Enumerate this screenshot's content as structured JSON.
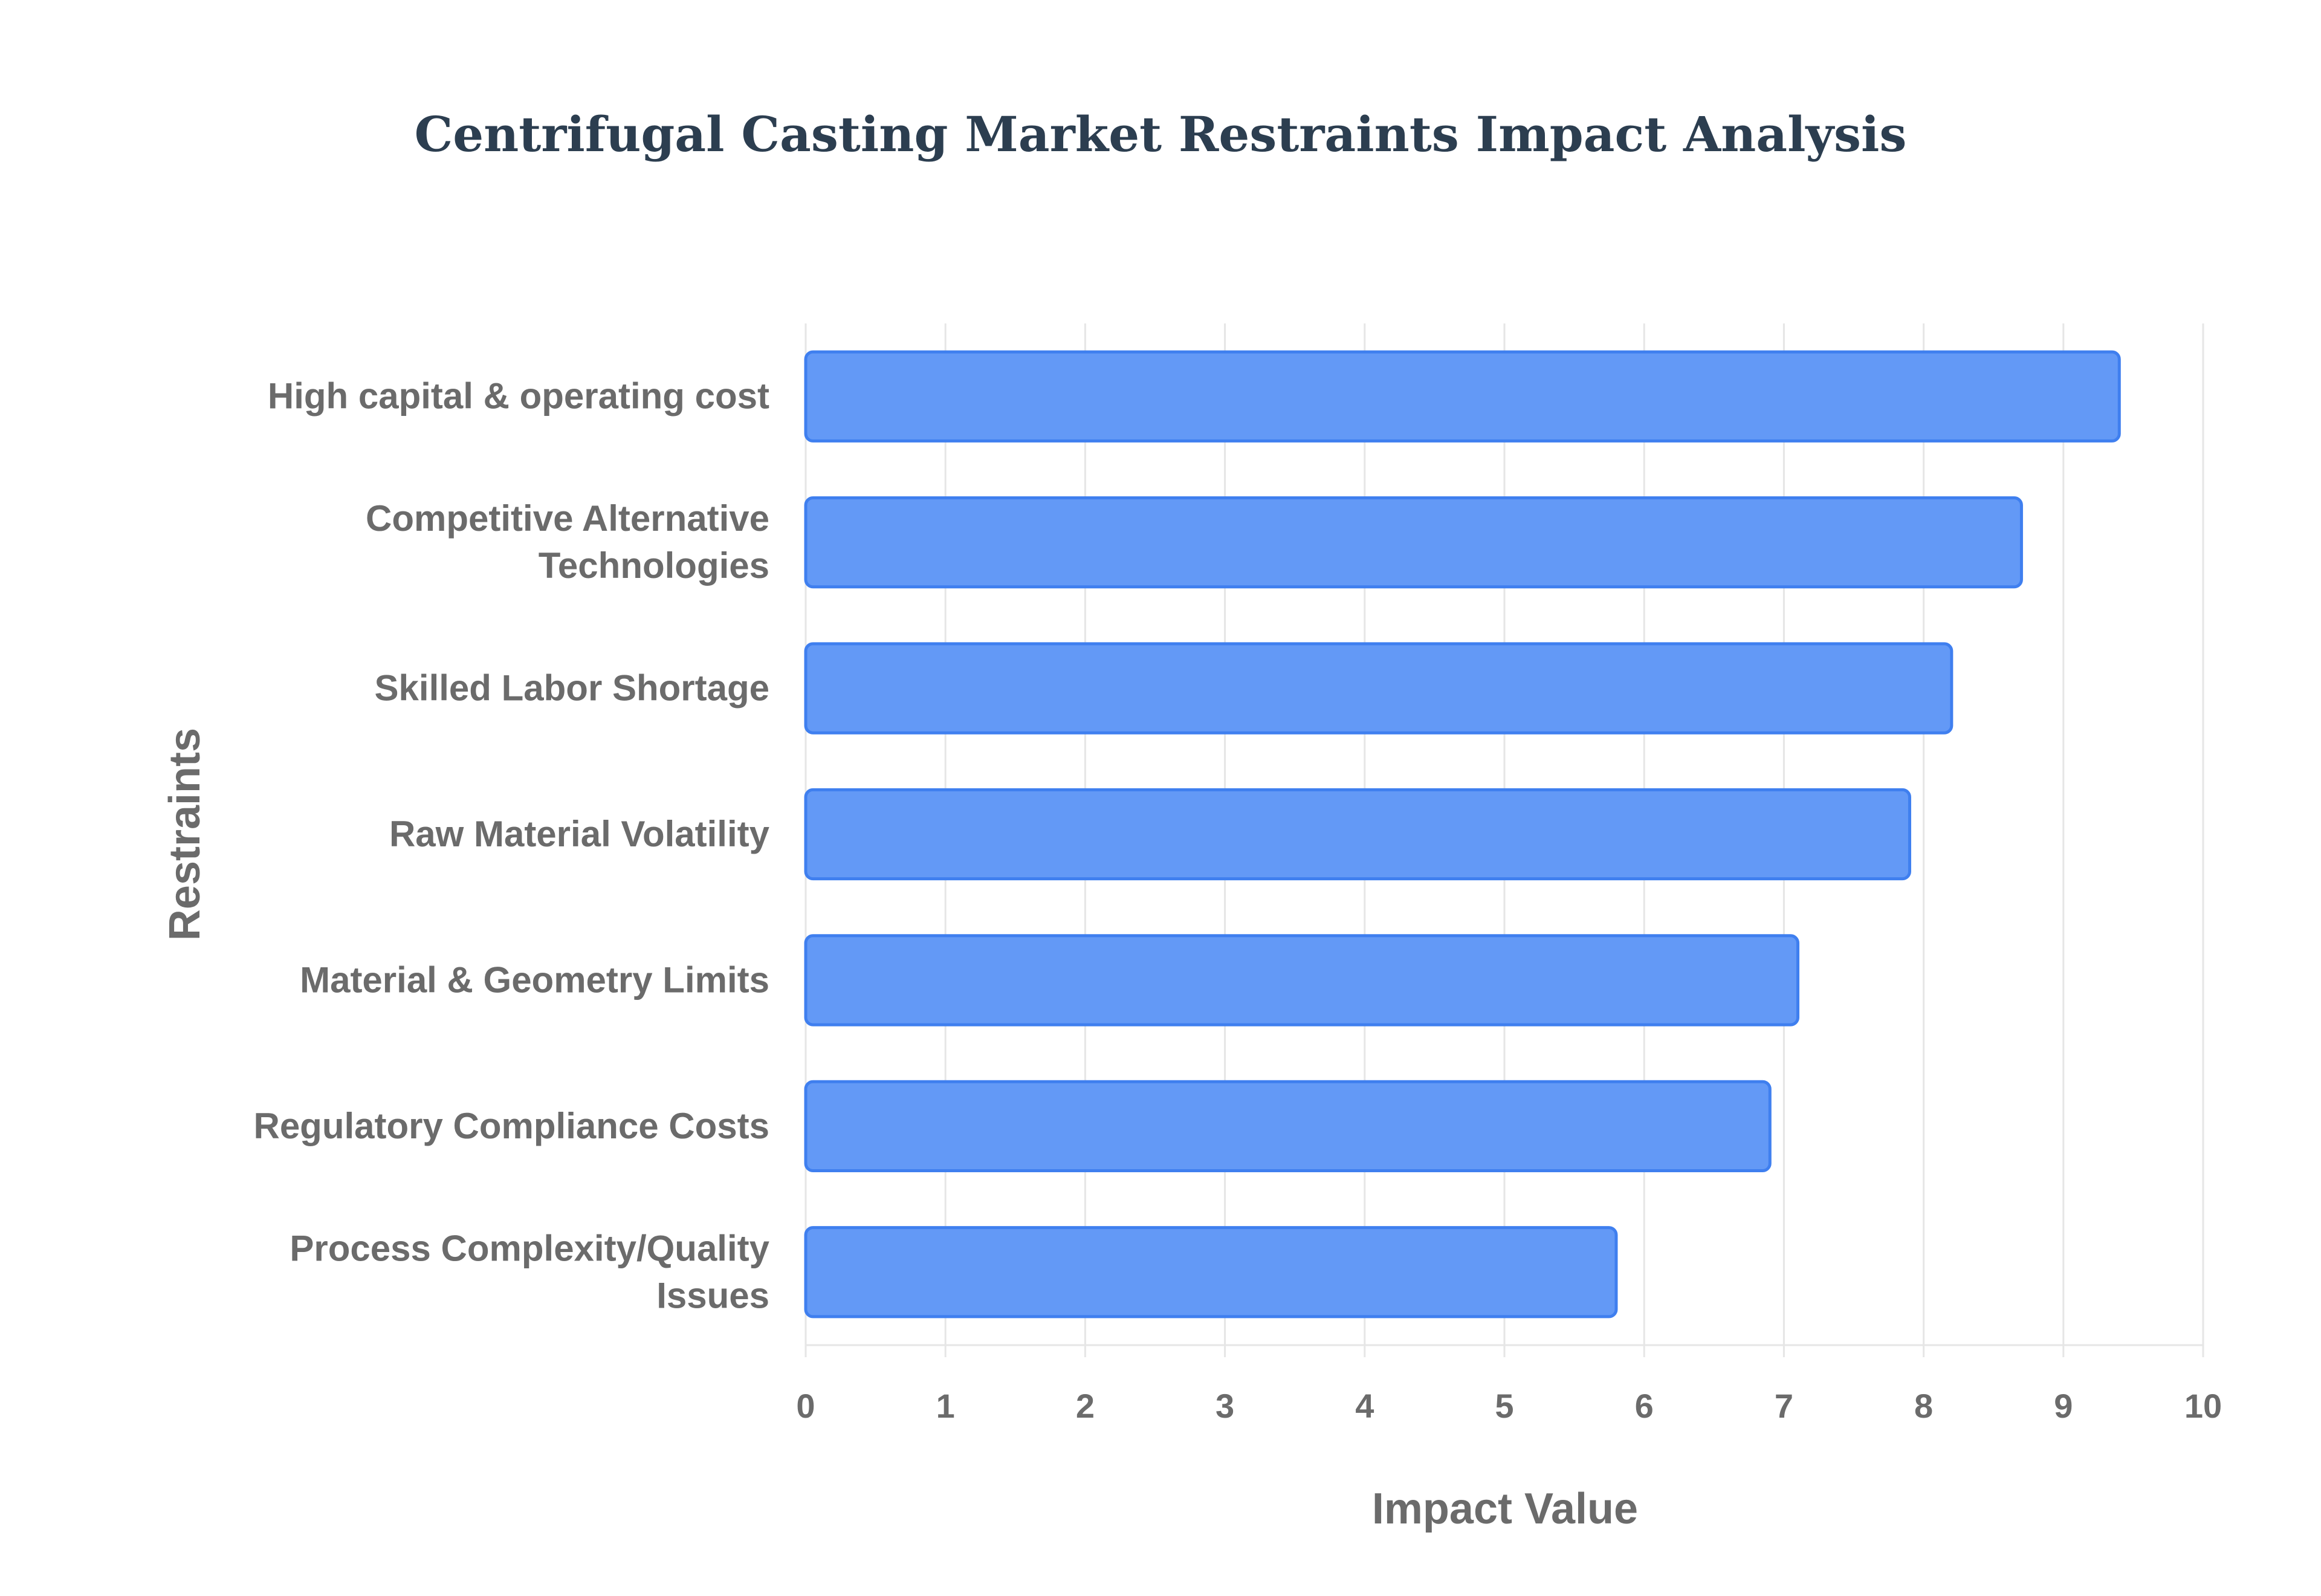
{
  "chart_data": {
    "type": "bar",
    "orientation": "horizontal",
    "title": "Centrifugal Casting Market Restraints Impact Analysis",
    "xlabel": "Impact Value",
    "ylabel": "Restraints",
    "xlim": [
      0,
      10
    ],
    "x_ticks": [
      "0",
      "1",
      "2",
      "3",
      "4",
      "5",
      "6",
      "7",
      "8",
      "9",
      "10"
    ],
    "grid": true,
    "categories": [
      "High capital & operating cost",
      "Competitive Alternative Technologies",
      "Skilled Labor Shortage",
      "Raw Material Volatility",
      "Material & Geometry Limits",
      "Regulatory Compliance Costs",
      "Process Complexity/Quality Issues"
    ],
    "category_lines": [
      [
        "High capital & operating cost"
      ],
      [
        "Competitive Alternative",
        "Technologies"
      ],
      [
        "Skilled Labor Shortage"
      ],
      [
        "Raw Material Volatility"
      ],
      [
        "Material & Geometry Limits"
      ],
      [
        "Regulatory Compliance Costs"
      ],
      [
        "Process Complexity/Quality",
        "Issues"
      ]
    ],
    "values": [
      9.4,
      8.7,
      8.2,
      7.9,
      7.1,
      6.9,
      5.8
    ],
    "bar_color": "#6399f6",
    "bar_edge_color": "#3f7fef",
    "grid_color": "#e6e6e6",
    "text_color": "#6b6b6b",
    "title_color": "#2c3e50"
  }
}
